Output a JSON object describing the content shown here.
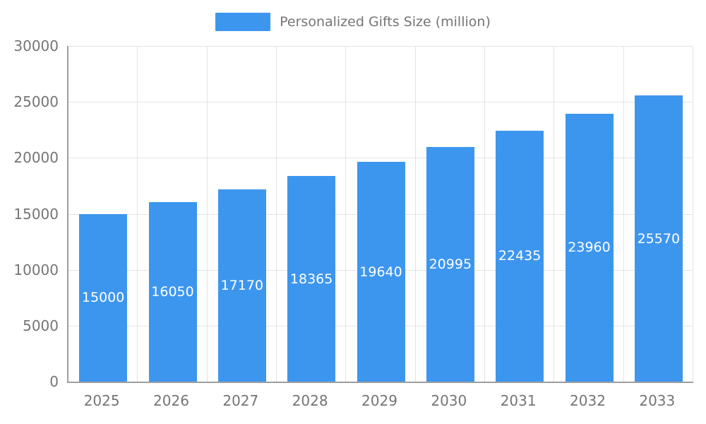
{
  "chart_data": {
    "type": "bar",
    "title": "",
    "legend": "Personalized Gifts Size (million)",
    "categories": [
      "2025",
      "2026",
      "2027",
      "2028",
      "2029",
      "2030",
      "2031",
      "2032",
      "2033"
    ],
    "values": [
      15000,
      16050,
      17170,
      18365,
      19640,
      20995,
      22435,
      23960,
      25570
    ],
    "xlabel": "",
    "ylabel": "",
    "ylim": [
      0,
      30000
    ],
    "ytick_step": 5000,
    "grid": true,
    "legend_position": "top-center",
    "bar_color": "#3d96ee",
    "value_label_color": "#ffffff",
    "axis_text_color": "#757575",
    "gridline_color": "#e3e3e3",
    "axis_line_color": "#9e9e9e"
  }
}
